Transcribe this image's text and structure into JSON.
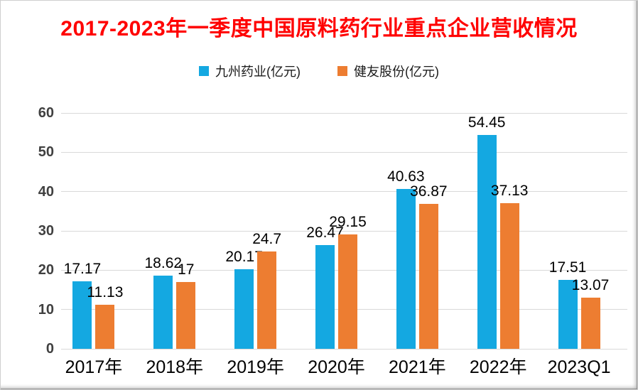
{
  "title": {
    "text": "2017-2023年一季度中国原料药行业重点企业营收情况",
    "color": "#ff0000"
  },
  "chart_data": {
    "type": "bar",
    "categories": [
      "2017年",
      "2018年",
      "2019年",
      "2020年",
      "2021年",
      "2022年",
      "2023Q1"
    ],
    "series": [
      {
        "name": "九州药业(亿元)",
        "color": "#14a8e1",
        "values": [
          17.17,
          18.62,
          20.17,
          26.47,
          40.63,
          54.45,
          17.51
        ],
        "labels": [
          "17.17",
          "18.62",
          "20.17",
          "26.47",
          "40.63",
          "54.45",
          "17.51"
        ]
      },
      {
        "name": "健友股份(亿元)",
        "color": "#ed7d31",
        "values": [
          11.13,
          17,
          24.7,
          29.15,
          36.87,
          37.13,
          13.07
        ],
        "labels": [
          "11.13",
          "17",
          "24.7",
          "29.15",
          "36.87",
          "37.13",
          "13.07"
        ]
      }
    ],
    "ylim": [
      0,
      60
    ],
    "yticks": [
      0,
      10,
      20,
      30,
      40,
      50,
      60
    ],
    "grid": true,
    "legend_position": "top-center",
    "value_labels": true,
    "gridline_color": "#d9d9d9",
    "tick_label_color": "#404040",
    "value_label_color": "#000000",
    "xlabel": "",
    "ylabel": ""
  }
}
